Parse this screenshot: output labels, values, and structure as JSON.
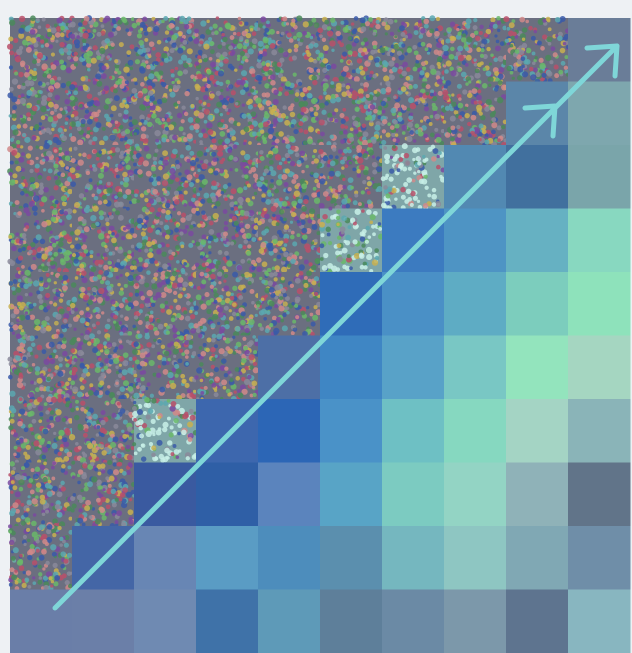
{
  "image": {
    "frame_color": "#eef1f4",
    "grid": {
      "columns": 10,
      "rows": 10
    },
    "noise_palette": [
      "#b8506a",
      "#4a8a5a",
      "#3a5aa8",
      "#c8b050",
      "#7a4aa0",
      "#5aa8b0",
      "#8a8a9a",
      "#d08a8a",
      "#6ab86a"
    ],
    "arrow": {
      "color": "#7fd6d8",
      "direction": "diagonal-up-right"
    },
    "pixel_colors": [
      [
        "noise",
        "noise",
        "noise",
        "noise",
        "noise",
        "noise",
        "noise",
        "noise",
        "noise",
        "#6a7d98"
      ],
      [
        "noise",
        "noise",
        "noise",
        "noise",
        "noise",
        "noise",
        "noise",
        "noise",
        "#5b86a9",
        "#7ea7ae"
      ],
      [
        "noise",
        "noise",
        "noise",
        "noise",
        "noise",
        "noise",
        "noise-light",
        "#5289b2",
        "#41709e",
        "#7aa5aa"
      ],
      [
        "noise",
        "noise",
        "noise",
        "noise",
        "noise",
        "noise-light",
        "#3c7bc0",
        "#4e94c4",
        "#66b1c2",
        "#88d8c0"
      ],
      [
        "noise",
        "noise",
        "noise",
        "noise",
        "noise",
        "#2f6cb8",
        "#4a90c6",
        "#5eacc4",
        "#7ccdbd",
        "#8ee2bb"
      ],
      [
        "noise",
        "noise",
        "noise",
        "noise",
        "#4d6fa6",
        "#3f86c4",
        "#58a2c8",
        "#79c7c4",
        "#93e4bd",
        "#a5d6c1"
      ],
      [
        "noise",
        "noise",
        "noise-light",
        "#3d67ae",
        "#2c66b6",
        "#4a92c8",
        "#6ec0c4",
        "#86d8c0",
        "#a4d4c4",
        "#8ab4b8"
      ],
      [
        "noise",
        "noise",
        "#3a5aa0",
        "#2f5fa6",
        "#5b84bd",
        "#58a4c6",
        "#7ccbc1",
        "#93d4c4",
        "#8fb2b8",
        "#617489"
      ],
      [
        "noise",
        "#4466a6",
        "#6886b4",
        "#5a9cc4",
        "#4d8dbc",
        "#5b8fae",
        "#75b7bf",
        "#8ec6c2",
        "#80a8b4",
        "#6f8ea8"
      ],
      [
        "#6a7ea8",
        "#6b7fa8",
        "#6f8ab2",
        "#3f72a8",
        "#5e9ab8",
        "#5e7f9a",
        "#6b8aa5",
        "#7c98aa",
        "#5e748f",
        "#88b6c0"
      ]
    ]
  }
}
